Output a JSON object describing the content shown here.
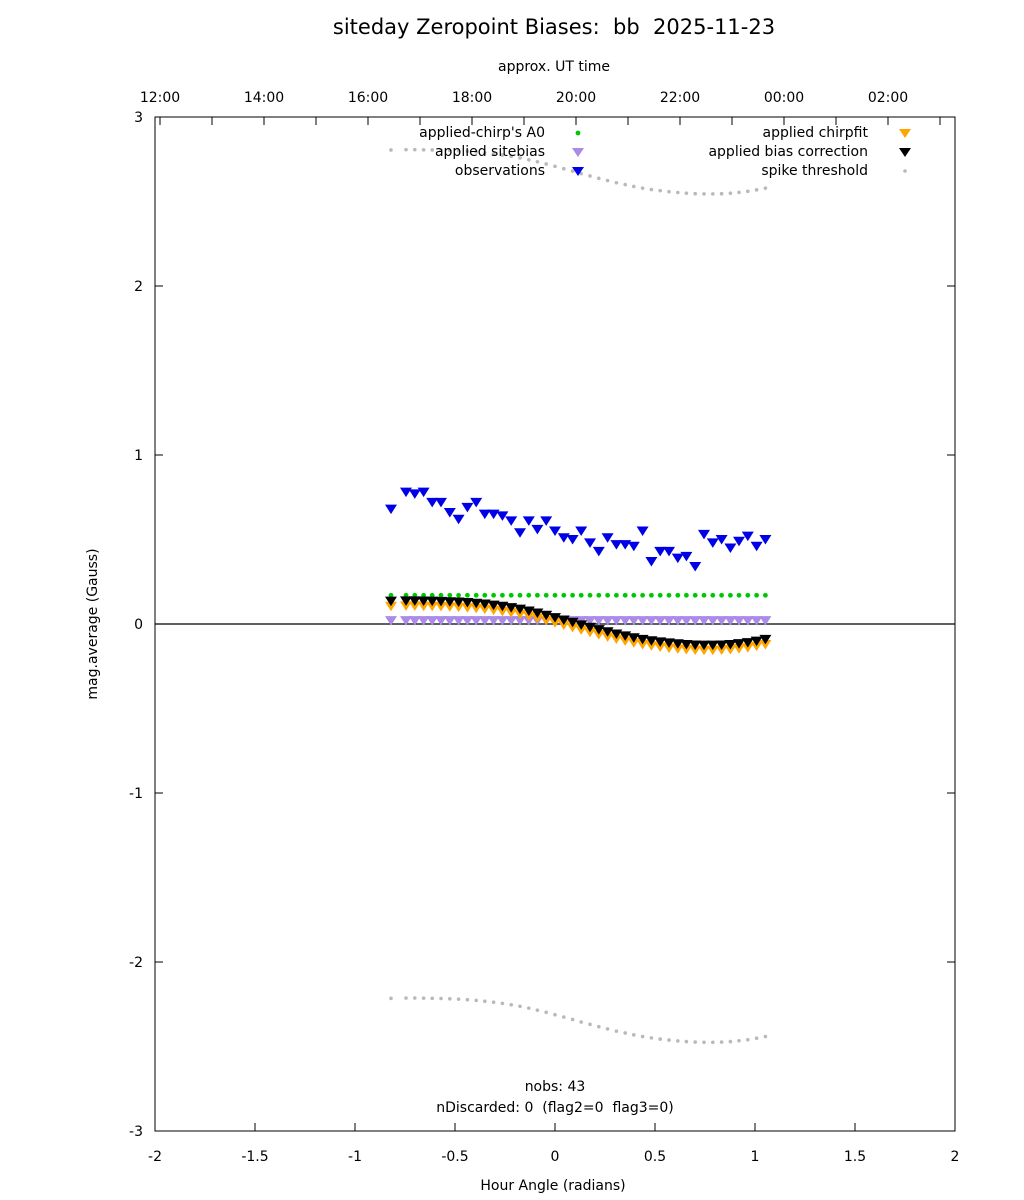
{
  "title": "siteday Zeropoint Biases:  bb  2025-11-23",
  "annotations": {
    "nobs": "nobs: 43",
    "ndiscarded": "nDiscarded: 0  (flag2=0  flag3=0)"
  },
  "axes": {
    "top": {
      "label": "approx. UT time",
      "tick_labels": [
        "12:00",
        "14:00",
        "16:00",
        "18:00",
        "20:00",
        "22:00",
        "00:00",
        "02:00"
      ]
    },
    "bottom": {
      "label": "Hour Angle (radians)",
      "tick_values": [
        -2,
        -1.5,
        -1,
        -0.5,
        0,
        0.5,
        1,
        1.5,
        2
      ],
      "tick_labels": [
        "-2",
        "-1.5",
        "-1",
        "-0.5",
        "0",
        "0.5",
        "1",
        "1.5",
        "2"
      ]
    },
    "left": {
      "label": "mag.average (Gauss)",
      "tick_values": [
        -3,
        -2,
        -1,
        0,
        1,
        2,
        3
      ],
      "tick_labels": [
        "-3",
        "-2",
        "-1",
        "0",
        "1",
        "2",
        "3"
      ]
    }
  },
  "legend": {
    "items": [
      {
        "label": "applied-chirp's A0",
        "marker": "dot",
        "color": "#00c800"
      },
      {
        "label": "applied chirpfit",
        "marker": "triangle-down",
        "color": "#ffa500"
      },
      {
        "label": "applied sitebias",
        "marker": "triangle-down",
        "color": "#ab8be8"
      },
      {
        "label": "applied bias correction",
        "marker": "triangle-down",
        "color": "#000000"
      },
      {
        "label": "observations",
        "marker": "triangle-down",
        "color": "#0000e6"
      },
      {
        "label": "spike threshold",
        "marker": "dot",
        "color": "#b9b9b9"
      }
    ]
  },
  "chart_data": {
    "type": "scatter",
    "title": "siteday Zeropoint Biases:  bb  2025-11-23",
    "xlabel": "Hour Angle (radians)",
    "ylabel": "mag.average (Gauss)",
    "x2label": "approx. UT time",
    "xlim": [
      -2,
      2
    ],
    "ylim": [
      -3,
      3
    ],
    "grid": false,
    "zero_line": true,
    "legend_position": "top-inside",
    "x2_tick_labels": [
      "12:00",
      "14:00",
      "16:00",
      "18:00",
      "20:00",
      "22:00",
      "00:00",
      "02:00"
    ],
    "nobs": 43,
    "x": [
      -0.82,
      -0.745,
      -0.701,
      -0.657,
      -0.614,
      -0.57,
      -0.526,
      -0.482,
      -0.438,
      -0.394,
      -0.351,
      -0.307,
      -0.263,
      -0.219,
      -0.175,
      -0.131,
      -0.088,
      -0.044,
      0.0,
      0.044,
      0.088,
      0.131,
      0.175,
      0.219,
      0.263,
      0.307,
      0.351,
      0.394,
      0.438,
      0.482,
      0.526,
      0.57,
      0.614,
      0.657,
      0.701,
      0.745,
      0.789,
      0.833,
      0.877,
      0.92,
      0.964,
      1.008,
      1.052
    ],
    "series": [
      {
        "name": "applied-chirp's A0",
        "marker": "dot",
        "color": "#00c800",
        "constant": 0.17
      },
      {
        "name": "applied sitebias",
        "marker": "triangle-down",
        "color": "#ab8be8",
        "constant": 0.02
      },
      {
        "name": "applied chirpfit",
        "marker": "triangle-down",
        "color": "#ffa500",
        "values": [
          0.105,
          0.107,
          0.107,
          0.106,
          0.105,
          0.104,
          0.102,
          0.1,
          0.097,
          0.093,
          0.088,
          0.082,
          0.075,
          0.067,
          0.058,
          0.047,
          0.035,
          0.022,
          0.008,
          -0.006,
          -0.02,
          -0.035,
          -0.049,
          -0.063,
          -0.076,
          -0.089,
          -0.1,
          -0.111,
          -0.121,
          -0.129,
          -0.136,
          -0.142,
          -0.147,
          -0.151,
          -0.154,
          -0.155,
          -0.155,
          -0.154,
          -0.151,
          -0.146,
          -0.14,
          -0.131,
          -0.121
        ]
      },
      {
        "name": "applied bias correction",
        "marker": "triangle-down",
        "color": "#000000",
        "values": [
          0.135,
          0.137,
          0.137,
          0.136,
          0.135,
          0.134,
          0.132,
          0.13,
          0.127,
          0.123,
          0.118,
          0.112,
          0.105,
          0.097,
          0.088,
          0.077,
          0.065,
          0.052,
          0.038,
          0.024,
          0.01,
          -0.005,
          -0.019,
          -0.033,
          -0.046,
          -0.059,
          -0.07,
          -0.081,
          -0.091,
          -0.099,
          -0.106,
          -0.112,
          -0.117,
          -0.121,
          -0.124,
          -0.125,
          -0.125,
          -0.124,
          -0.121,
          -0.116,
          -0.11,
          -0.101,
          -0.091
        ]
      },
      {
        "name": "observations",
        "marker": "triangle-down",
        "color": "#0000e6",
        "values": [
          0.68,
          0.78,
          0.77,
          0.78,
          0.72,
          0.72,
          0.66,
          0.62,
          0.69,
          0.72,
          0.65,
          0.65,
          0.64,
          0.61,
          0.54,
          0.61,
          0.56,
          0.61,
          0.55,
          0.51,
          0.5,
          0.55,
          0.48,
          0.43,
          0.51,
          0.47,
          0.47,
          0.46,
          0.55,
          0.37,
          0.43,
          0.43,
          0.39,
          0.4,
          0.34,
          0.53,
          0.48,
          0.5,
          0.45,
          0.49,
          0.52,
          0.46,
          0.5
        ]
      },
      {
        "name": "spike threshold",
        "marker": "dot",
        "color": "#b9b9b9",
        "values_upper": [
          2.805,
          2.807,
          2.807,
          2.806,
          2.805,
          2.804,
          2.802,
          2.8,
          2.797,
          2.793,
          2.788,
          2.782,
          2.775,
          2.767,
          2.758,
          2.747,
          2.735,
          2.722,
          2.708,
          2.694,
          2.68,
          2.665,
          2.651,
          2.637,
          2.624,
          2.611,
          2.6,
          2.589,
          2.579,
          2.571,
          2.564,
          2.558,
          2.553,
          2.549,
          2.546,
          2.545,
          2.545,
          2.546,
          2.549,
          2.554,
          2.56,
          2.569,
          2.579
        ],
        "values_lower": [
          -2.215,
          -2.213,
          -2.213,
          -2.214,
          -2.215,
          -2.216,
          -2.218,
          -2.22,
          -2.223,
          -2.227,
          -2.232,
          -2.238,
          -2.245,
          -2.253,
          -2.262,
          -2.273,
          -2.285,
          -2.298,
          -2.312,
          -2.326,
          -2.34,
          -2.355,
          -2.369,
          -2.383,
          -2.396,
          -2.409,
          -2.42,
          -2.431,
          -2.441,
          -2.449,
          -2.456,
          -2.462,
          -2.467,
          -2.471,
          -2.474,
          -2.475,
          -2.475,
          -2.474,
          -2.471,
          -2.466,
          -2.46,
          -2.451,
          -2.441
        ]
      }
    ]
  }
}
